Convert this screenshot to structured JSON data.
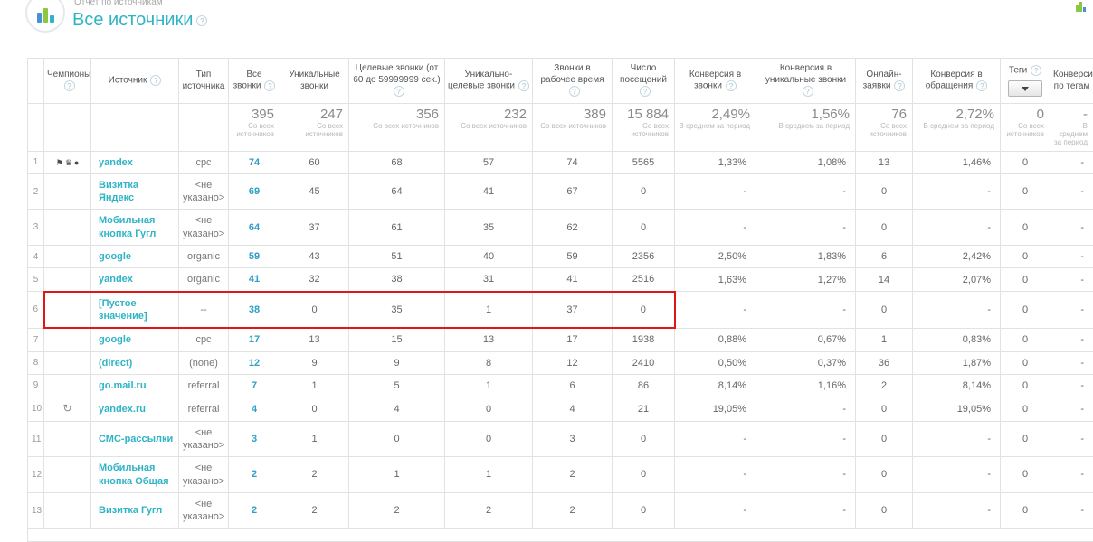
{
  "colors": {
    "accent": "#2fb4c6",
    "calls": "#2d9fc9",
    "highlight": "#e01616",
    "green": "#8dc63f",
    "blue": "#4a90d9"
  },
  "header": {
    "subtitle": "Отчет по источникам",
    "title": "Все источники"
  },
  "table": {
    "help_glyph": "?",
    "columns": [
      {
        "key": "num",
        "label": ""
      },
      {
        "key": "champions",
        "label": "Чемпионы",
        "help": true
      },
      {
        "key": "source",
        "label": "Источник",
        "help": true
      },
      {
        "key": "type",
        "label": "Тип источника"
      },
      {
        "key": "calls",
        "label": "Все звонки",
        "help": true
      },
      {
        "key": "unique",
        "label": "Уникальные звонки"
      },
      {
        "key": "target",
        "label": "Целевые звонки (от 60 до 59999999 сек.)",
        "help": true
      },
      {
        "key": "unique_target",
        "label": "Уникально-целевые звонки",
        "help": true
      },
      {
        "key": "work",
        "label": "Звонки в рабочее время",
        "help": true
      },
      {
        "key": "visits",
        "label": "Число посещений",
        "help": true
      },
      {
        "key": "conv_calls",
        "label": "Конверсия в звонки",
        "help": true
      },
      {
        "key": "conv_unique",
        "label": "Конверсия в уникальные звонки",
        "help": true
      },
      {
        "key": "online",
        "label": "Онлайн-заявки",
        "help": true
      },
      {
        "key": "conv_appeals",
        "label": "Конверсия в обращения",
        "help": true
      },
      {
        "key": "tags",
        "label": "Теги",
        "help": true,
        "filter": true
      },
      {
        "key": "conv_tags",
        "label": "Конверсия по тегам"
      }
    ],
    "summary": {
      "calls": {
        "value": "395",
        "caption": "Со всех источников"
      },
      "unique": {
        "value": "247",
        "caption": "Со всех источников"
      },
      "target": {
        "value": "356",
        "caption": "Со всех источников"
      },
      "unique_target": {
        "value": "232",
        "caption": "Со всех источников"
      },
      "work": {
        "value": "389",
        "caption": "Со всех источников"
      },
      "visits": {
        "value": "15 884",
        "caption": "Со всех источников"
      },
      "conv_calls": {
        "value": "2,49%",
        "caption": "В среднем за период"
      },
      "conv_unique": {
        "value": "1,56%",
        "caption": "В среднем за период"
      },
      "online": {
        "value": "76",
        "caption": "Со всех источников"
      },
      "conv_appeals": {
        "value": "2,72%",
        "caption": "В среднем за период"
      },
      "tags": {
        "value": "0",
        "caption": "Со всех источников"
      },
      "conv_tags": {
        "value": "-",
        "caption": "В среднем за период"
      }
    },
    "rows": [
      {
        "num": "1",
        "champions": [
          {
            "name": "flag-icon",
            "glyph": "⚑"
          },
          {
            "name": "crown-icon",
            "glyph": "♛"
          },
          {
            "name": "medal-icon",
            "glyph": "●"
          }
        ],
        "source": "yandex",
        "type": "cpc",
        "calls": "74",
        "unique": "60",
        "target": "68",
        "unique_target": "57",
        "work": "74",
        "visits": "5565",
        "conv_calls": "1,33%",
        "conv_unique": "1,08%",
        "online": "13",
        "conv_appeals": "1,46%",
        "tags": "0",
        "conv_tags": "-",
        "highlighted": false
      },
      {
        "num": "2",
        "champions": [],
        "source": "Визитка Яндекс",
        "type": "<не указано>",
        "calls": "69",
        "unique": "45",
        "target": "64",
        "unique_target": "41",
        "work": "67",
        "visits": "0",
        "conv_calls": "-",
        "conv_unique": "-",
        "online": "0",
        "conv_appeals": "-",
        "tags": "0",
        "conv_tags": "-",
        "highlighted": false
      },
      {
        "num": "3",
        "champions": [],
        "source": "Мобильная кнопка Гугл",
        "type": "<не указано>",
        "calls": "64",
        "unique": "37",
        "target": "61",
        "unique_target": "35",
        "work": "62",
        "visits": "0",
        "conv_calls": "-",
        "conv_unique": "-",
        "online": "0",
        "conv_appeals": "-",
        "tags": "0",
        "conv_tags": "-",
        "highlighted": false
      },
      {
        "num": "4",
        "champions": [],
        "source": "google",
        "type": "organic",
        "calls": "59",
        "unique": "43",
        "target": "51",
        "unique_target": "40",
        "work": "59",
        "visits": "2356",
        "conv_calls": "2,50%",
        "conv_unique": "1,83%",
        "online": "6",
        "conv_appeals": "2,42%",
        "tags": "0",
        "conv_tags": "-",
        "highlighted": false
      },
      {
        "num": "5",
        "champions": [],
        "source": "yandex",
        "type": "organic",
        "calls": "41",
        "unique": "32",
        "target": "38",
        "unique_target": "31",
        "work": "41",
        "visits": "2516",
        "conv_calls": "1,63%",
        "conv_unique": "1,27%",
        "online": "14",
        "conv_appeals": "2,07%",
        "tags": "0",
        "conv_tags": "-",
        "highlighted": false
      },
      {
        "num": "6",
        "champions": [],
        "source": "[Пустое значение]",
        "type": "--",
        "calls": "38",
        "unique": "0",
        "target": "35",
        "unique_target": "1",
        "work": "37",
        "visits": "0",
        "conv_calls": "-",
        "conv_unique": "-",
        "online": "0",
        "conv_appeals": "-",
        "tags": "0",
        "conv_tags": "-",
        "highlighted": true
      },
      {
        "num": "7",
        "champions": [],
        "source": "google",
        "type": "cpc",
        "calls": "17",
        "unique": "13",
        "target": "15",
        "unique_target": "13",
        "work": "17",
        "visits": "1938",
        "conv_calls": "0,88%",
        "conv_unique": "0,67%",
        "online": "1",
        "conv_appeals": "0,83%",
        "tags": "0",
        "conv_tags": "-",
        "highlighted": false
      },
      {
        "num": "8",
        "champions": [],
        "source": "(direct)",
        "type": "(none)",
        "calls": "12",
        "unique": "9",
        "target": "9",
        "unique_target": "8",
        "work": "12",
        "visits": "2410",
        "conv_calls": "0,50%",
        "conv_unique": "0,37%",
        "online": "36",
        "conv_appeals": "1,87%",
        "tags": "0",
        "conv_tags": "-",
        "highlighted": false
      },
      {
        "num": "9",
        "champions": [],
        "source": "go.mail.ru",
        "type": "referral",
        "calls": "7",
        "unique": "1",
        "target": "5",
        "unique_target": "1",
        "work": "6",
        "visits": "86",
        "conv_calls": "8,14%",
        "conv_unique": "1,16%",
        "online": "2",
        "conv_appeals": "8,14%",
        "tags": "0",
        "conv_tags": "-",
        "highlighted": false
      },
      {
        "num": "10",
        "champions": [
          {
            "name": "refresh-icon",
            "glyph": "↻"
          }
        ],
        "source": "yandex.ru",
        "type": "referral",
        "calls": "4",
        "unique": "0",
        "target": "4",
        "unique_target": "0",
        "work": "4",
        "visits": "21",
        "conv_calls": "19,05%",
        "conv_unique": "-",
        "online": "0",
        "conv_appeals": "19,05%",
        "tags": "0",
        "conv_tags": "-",
        "highlighted": false
      },
      {
        "num": "11",
        "champions": [],
        "source": "СМС-рассылки",
        "type": "<не указано>",
        "calls": "3",
        "unique": "1",
        "target": "0",
        "unique_target": "0",
        "work": "3",
        "visits": "0",
        "conv_calls": "-",
        "conv_unique": "-",
        "online": "0",
        "conv_appeals": "-",
        "tags": "0",
        "conv_tags": "-",
        "highlighted": false
      },
      {
        "num": "12",
        "champions": [],
        "source": "Мобильная кнопка Общая",
        "type": "<не указано>",
        "calls": "2",
        "unique": "2",
        "target": "1",
        "unique_target": "1",
        "work": "2",
        "visits": "0",
        "conv_calls": "-",
        "conv_unique": "-",
        "online": "0",
        "conv_appeals": "-",
        "tags": "0",
        "conv_tags": "-",
        "highlighted": false
      },
      {
        "num": "13",
        "champions": [],
        "source": "Визитка Гугл",
        "type": "<не указано>",
        "calls": "2",
        "unique": "2",
        "target": "2",
        "unique_target": "2",
        "work": "2",
        "visits": "0",
        "conv_calls": "-",
        "conv_unique": "-",
        "online": "0",
        "conv_appeals": "-",
        "tags": "0",
        "conv_tags": "-",
        "highlighted": false
      }
    ]
  }
}
